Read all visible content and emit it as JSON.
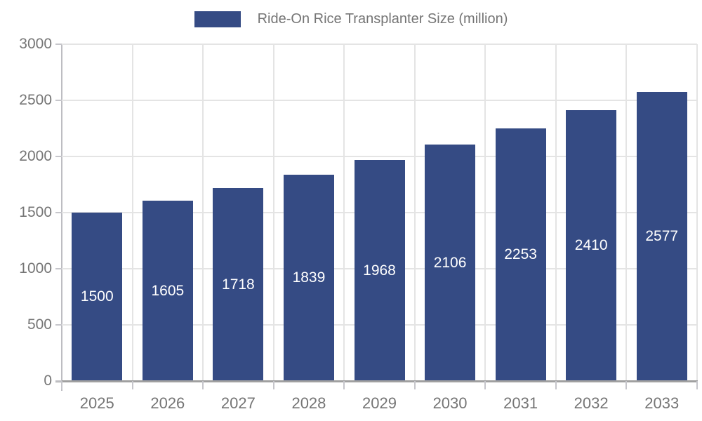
{
  "page": {
    "background_color": "#ffffff"
  },
  "legend": {
    "label": "Ride-On Rice Transplanter Size (million)",
    "swatch_color": "#354B84",
    "text_color": "#757575"
  },
  "chart_data": {
    "type": "bar",
    "title": "Ride-On Rice Transplanter Size (million)",
    "series": [
      {
        "name": "Ride-On Rice Transplanter Size (million)",
        "values": [
          1500,
          1605,
          1718,
          1839,
          1968,
          2106,
          2253,
          2410,
          2577
        ]
      }
    ],
    "categories": [
      "2025",
      "2026",
      "2027",
      "2028",
      "2029",
      "2030",
      "2031",
      "2032",
      "2033"
    ],
    "value_labels": [
      "1500",
      "1605",
      "1718",
      "1839",
      "1968",
      "2106",
      "2253",
      "2410",
      "2577"
    ],
    "xlabel": "",
    "ylabel": "",
    "ylim": [
      0,
      3000
    ],
    "yticks": [
      0,
      500,
      1000,
      1500,
      2000,
      2500,
      3000
    ],
    "grid": true,
    "legend_position": "top-center",
    "bar_color": "#354B84",
    "value_label_color": "#ffffff",
    "axis_text_color": "#757575",
    "gridline_color": "#e4e4e4",
    "axis_line_color": "#a0a0a0"
  }
}
